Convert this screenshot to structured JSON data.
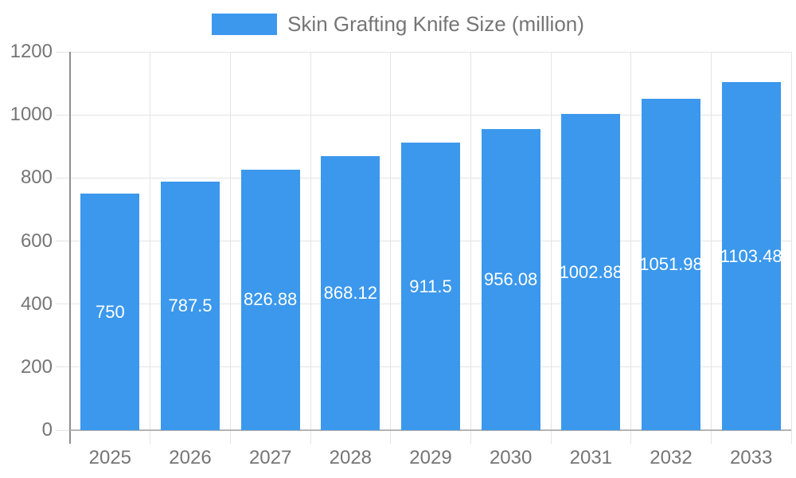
{
  "chart_data": {
    "type": "bar",
    "legend_label": "Skin Grafting Knife Size (million)",
    "legend_position": "top",
    "categories": [
      "2025",
      "2026",
      "2027",
      "2028",
      "2029",
      "2030",
      "2031",
      "2032",
      "2033"
    ],
    "values": [
      750,
      787.5,
      826.88,
      868.12,
      911.5,
      956.08,
      1002.88,
      1051.98,
      1103.48
    ],
    "value_labels": [
      "750",
      "787.5",
      "826.88",
      "868.12",
      "911.5",
      "956.08",
      "1002.88",
      "1051.98",
      "1103.48"
    ],
    "xlabel": "",
    "ylabel": "",
    "ylim": [
      0,
      1200
    ],
    "ytick_labels": [
      "0",
      "200",
      "400",
      "600",
      "800",
      "1000",
      "1200"
    ],
    "ytick_values": [
      0,
      200,
      400,
      600,
      800,
      1000,
      1200
    ],
    "grid": true,
    "colors": {
      "bar": "#3b98ec",
      "bar_value_text": "#ffffff",
      "axis_text": "#757575",
      "gridline": "#e4e4e4",
      "y_axis_line": "#8f8f8f",
      "x_axis_line": "#b3b3b3"
    }
  }
}
